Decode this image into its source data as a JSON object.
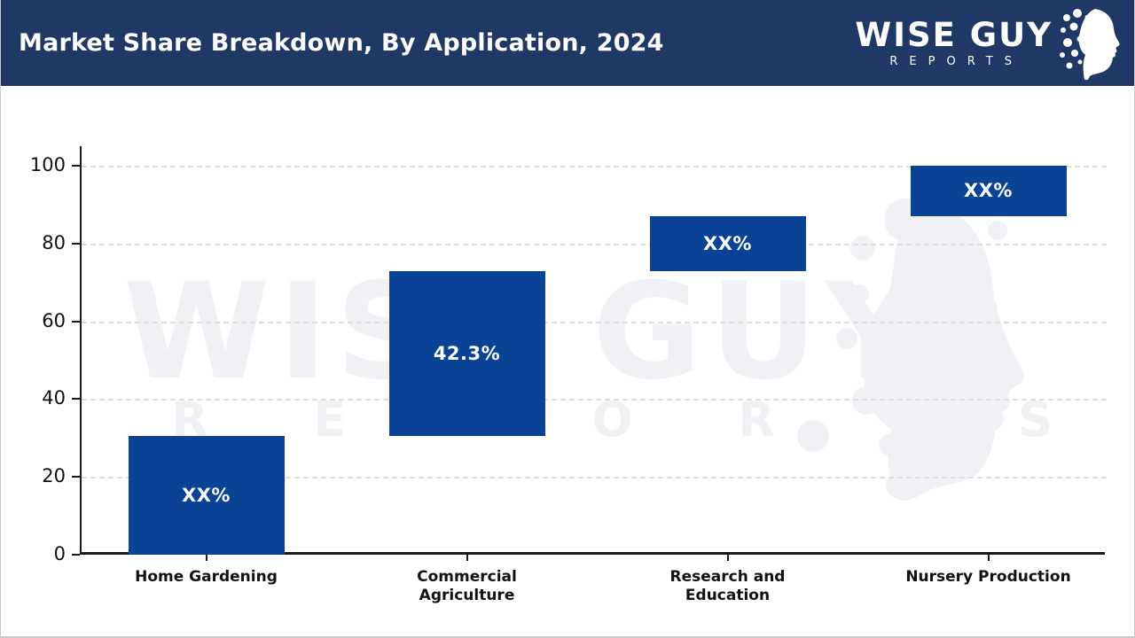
{
  "header": {
    "title": "Market Share Breakdown, By Application, 2024",
    "bg_color": "#1f3866",
    "logo": {
      "line1": "WISE GUY",
      "line2": "REPORTS"
    }
  },
  "watermark": {
    "line1": "WISE GUY",
    "line2": "R E P O R T S"
  },
  "chart_data": {
    "type": "bar",
    "subtype": "floating-waterfall",
    "title": "Market Share Breakdown, By Application, 2024",
    "categories": [
      "Home Gardening",
      "Commercial Agriculture",
      "Research and Education",
      "Nursery Production"
    ],
    "tick_labels": [
      "Home Gardening",
      "Commercial\nAgriculture",
      "Research and\nEducation",
      "Nursery Production"
    ],
    "segments": [
      {
        "category": "Home Gardening",
        "start": 0,
        "end": 30.5,
        "label": "XX%"
      },
      {
        "category": "Commercial Agriculture",
        "start": 30.5,
        "end": 72.8,
        "label": "42.3%",
        "value": 42.3
      },
      {
        "category": "Research and Education",
        "start": 72.8,
        "end": 87,
        "label": "XX%"
      },
      {
        "category": "Nursery Production",
        "start": 87,
        "end": 100,
        "label": "XX%"
      }
    ],
    "xlabel": "",
    "ylabel": "",
    "ylim": [
      0,
      105
    ],
    "yticks": [
      0,
      20,
      40,
      60,
      80,
      100
    ],
    "grid": "horizontal-dashed",
    "legend": "none",
    "bar_color": "#0a4296",
    "bar_label_color": "#ffffff",
    "axis_color": "#1a1a1a",
    "gridline_color": "#dedede"
  }
}
